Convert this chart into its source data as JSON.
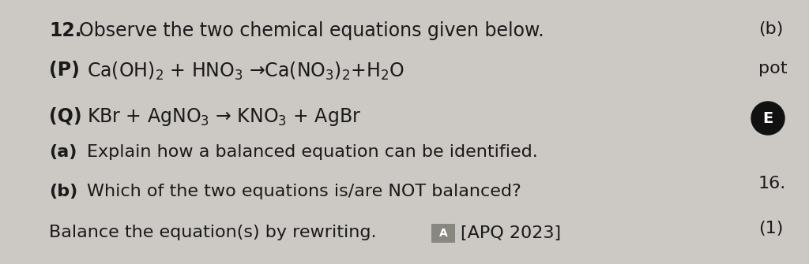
{
  "bg_color": "#ccc8c4",
  "text_color": "#1a1a1a",
  "title_number": "12.",
  "title_text": "Observe the two chemical equations given below.",
  "eq_P_label": "(P)",
  "eq_P": "Ca(OH)$_2$ + HNO$_3$ →Ca(NO$_3$)$_2$+H$_2$O",
  "eq_Q_label": "(Q)",
  "eq_Q": "KBr + AgNO$_3$ → KNO$_3$ + AgBr",
  "sub_a_label": "(a)",
  "sub_a_text": "Explain how a balanced equation can be identified.",
  "sub_b_label": "(b)",
  "sub_b_text": "Which of the two equations is/are NOT balanced?",
  "sub_b_text2": "Balance the equation(s) by rewriting.",
  "apq_label": "A",
  "apq": "[APQ 2023]",
  "right_b": "(b)",
  "right_pot": "pot",
  "right_16": "16.",
  "right_1": "(1)",
  "circle_E_color": "#111111",
  "circle_E_text": "E",
  "apq_box_color": "#888880",
  "font_size_title": 17,
  "font_size_eq": 17,
  "font_size_suba": 16,
  "font_size_subb": 16,
  "font_size_right": 16
}
